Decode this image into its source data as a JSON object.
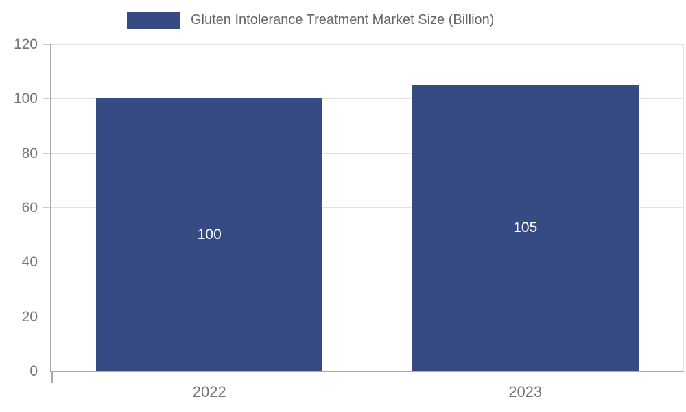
{
  "legend": {
    "label": "Gluten Intolerance Treatment Market Size (Billion)"
  },
  "chart_data": {
    "type": "bar",
    "categories": [
      "2022",
      "2023"
    ],
    "values": [
      100,
      105
    ],
    "series_name": "Gluten Intolerance Treatment Market Size (Billion)",
    "title": "",
    "xlabel": "",
    "ylabel": "",
    "ylim": [
      0,
      120
    ],
    "yticks": [
      0,
      20,
      40,
      60,
      80,
      100,
      120
    ],
    "grid": true,
    "legend_position": "top",
    "value_labels": [
      "100",
      "105"
    ],
    "ytick_labels": [
      "0",
      "20",
      "40",
      "60",
      "80",
      "100",
      "120"
    ]
  },
  "colors": {
    "background": "#ffffff",
    "bar": "#364A83",
    "axis_line": "#aaaaaa",
    "gridline": "#e3e3e3",
    "tick": "#cccccc",
    "axis_label": "#757575",
    "legend_text": "#666666",
    "value_label": "#ffffff"
  }
}
